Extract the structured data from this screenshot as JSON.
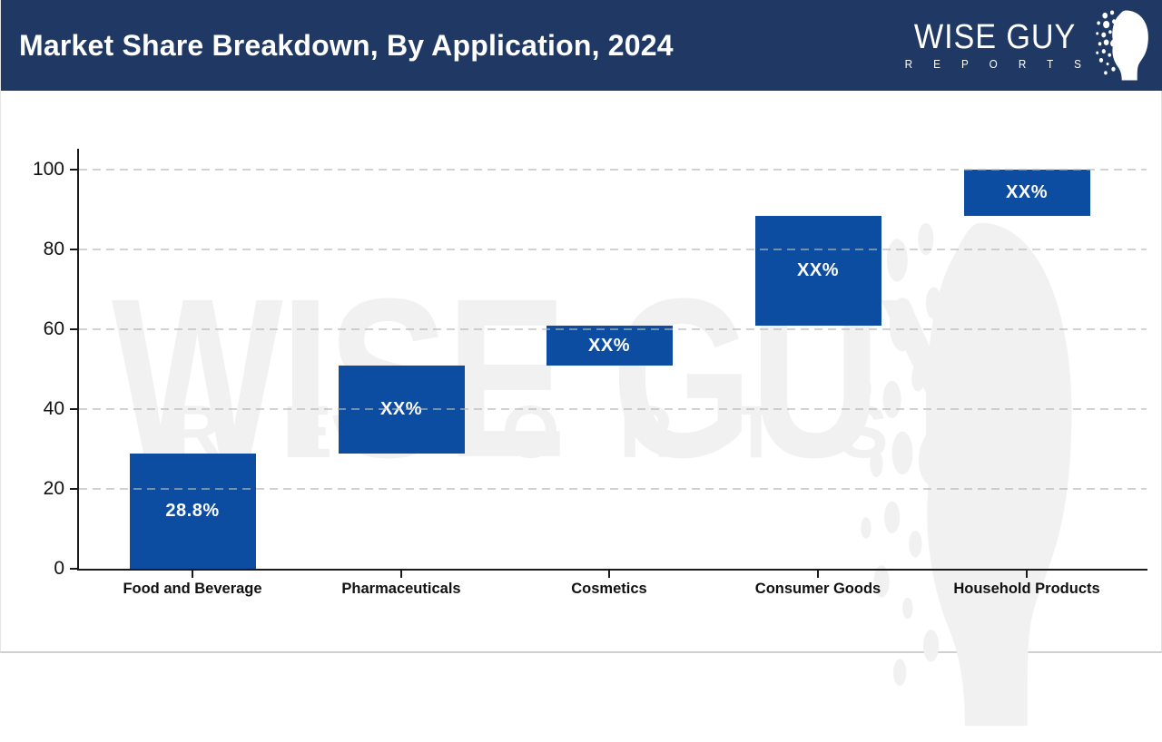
{
  "header": {
    "title": "Market Share Breakdown, By Application, 2024",
    "bg_color": "#1F3864",
    "logo": {
      "brand_line1": "WISE GUY",
      "brand_line2": "R E P O R T S",
      "head_icon": "dotted-face-profile"
    }
  },
  "watermark": {
    "line1": "WISE GUY",
    "line2": "REPORTS",
    "head_icon": "dotted-face-profile"
  },
  "chart_data": {
    "type": "bar",
    "variant": "waterfall-floating-bars",
    "title": "Market Share Breakdown, By Application, 2024",
    "xlabel": "",
    "ylabel": "",
    "categories": [
      "Food and Beverage",
      "Pharmaceuticals",
      "Cosmetics",
      "Consumer Goods",
      "Household Products"
    ],
    "segments": [
      {
        "category": "Food and Beverage",
        "start": 0,
        "end": 28.8,
        "label": "28.8%"
      },
      {
        "category": "Pharmaceuticals",
        "start": 28.8,
        "end": 50.8,
        "label": "XX%"
      },
      {
        "category": "Cosmetics",
        "start": 50.8,
        "end": 60.8,
        "label": "XX%"
      },
      {
        "category": "Consumer Goods",
        "start": 60.8,
        "end": 88.3,
        "label": "XX%"
      },
      {
        "category": "Household Products",
        "start": 88.3,
        "end": 100,
        "label": "XX%"
      }
    ],
    "values": [
      28.8,
      22.0,
      10.0,
      27.5,
      11.7
    ],
    "bar_labels": [
      "28.8%",
      "XX%",
      "XX%",
      "XX%",
      "XX%"
    ],
    "y_ticks": [
      0,
      20,
      40,
      60,
      80,
      100
    ],
    "ylim": [
      0,
      105
    ],
    "grid": "horizontal-dashed",
    "legend": "none",
    "colors": {
      "bar": "#0C4DA2",
      "header_bg": "#1F3864",
      "grid": "#d9d9d9",
      "axis": "#1a1a1a",
      "bar_label_text": "#ffffff",
      "watermark": "#f1f1f1"
    }
  }
}
